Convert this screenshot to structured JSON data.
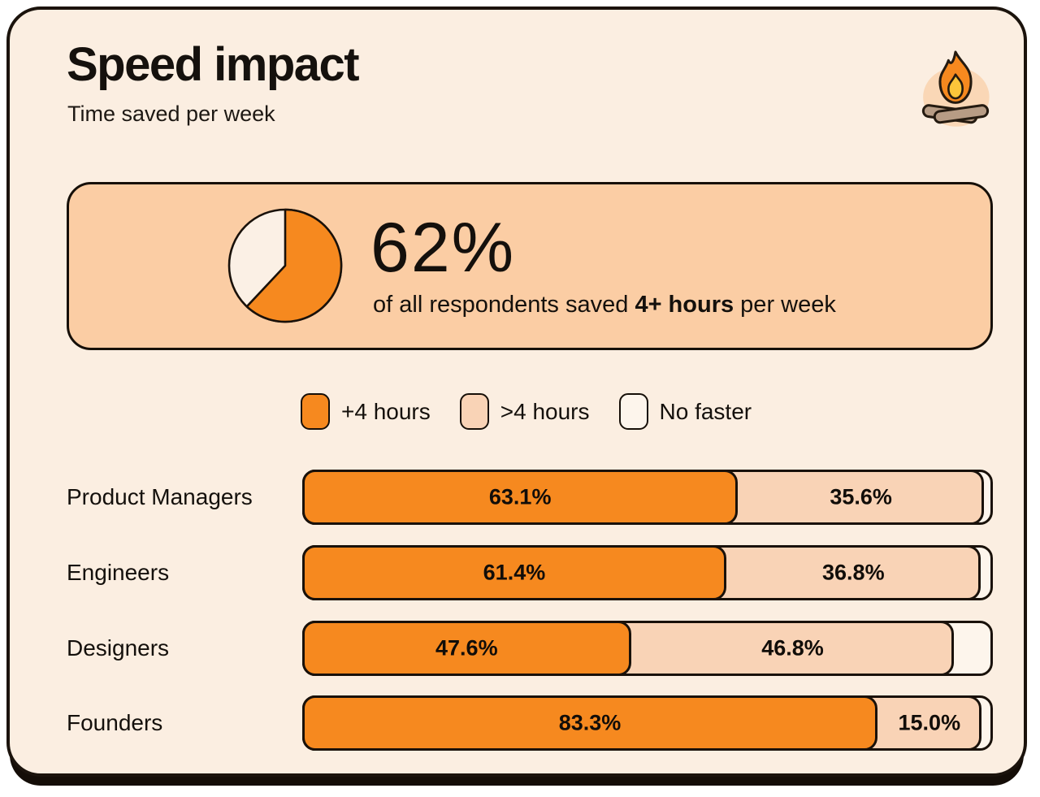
{
  "header": {
    "title": "Speed impact",
    "subtitle": "Time saved per week"
  },
  "decor": {
    "icon": "campfire-icon"
  },
  "highlight": {
    "value_label": "62%",
    "pie_percent": 62,
    "desc_prefix": "of all respondents saved ",
    "desc_bold": "4+ hours",
    "desc_suffix": " per week"
  },
  "chart_data": {
    "type": "bar",
    "orientation": "horizontal",
    "stacked": true,
    "unit": "%",
    "xlim": [
      0,
      100
    ],
    "grid": false,
    "legend_position": "top-center",
    "min_label_percent": 10,
    "categories": [
      "Product Managers",
      "Engineers",
      "Designers",
      "Founders"
    ],
    "series": [
      {
        "name": "+4 hours",
        "color": "#f6891f",
        "values": [
          63.1,
          61.4,
          47.6,
          83.3
        ]
      },
      {
        "name": ">4 hours",
        "color": "#f9d3b6",
        "values": [
          35.6,
          36.8,
          46.8,
          15.0
        ]
      },
      {
        "name": "No faster",
        "color": "#fdf5ec",
        "values": [
          1.3,
          1.8,
          5.6,
          1.7
        ]
      }
    ]
  },
  "colors": {
    "page_bg": "#ffffff",
    "card_bg": "#fbeee1",
    "card_border": "#1b130c",
    "stat_box_bg": "#fbcda4",
    "orange": "#f6891f",
    "peach": "#f9d3b6",
    "cream": "#fdf5ec",
    "pie_rest": "#fbf0e5",
    "outline": "#19110a",
    "text": "#14100c"
  }
}
